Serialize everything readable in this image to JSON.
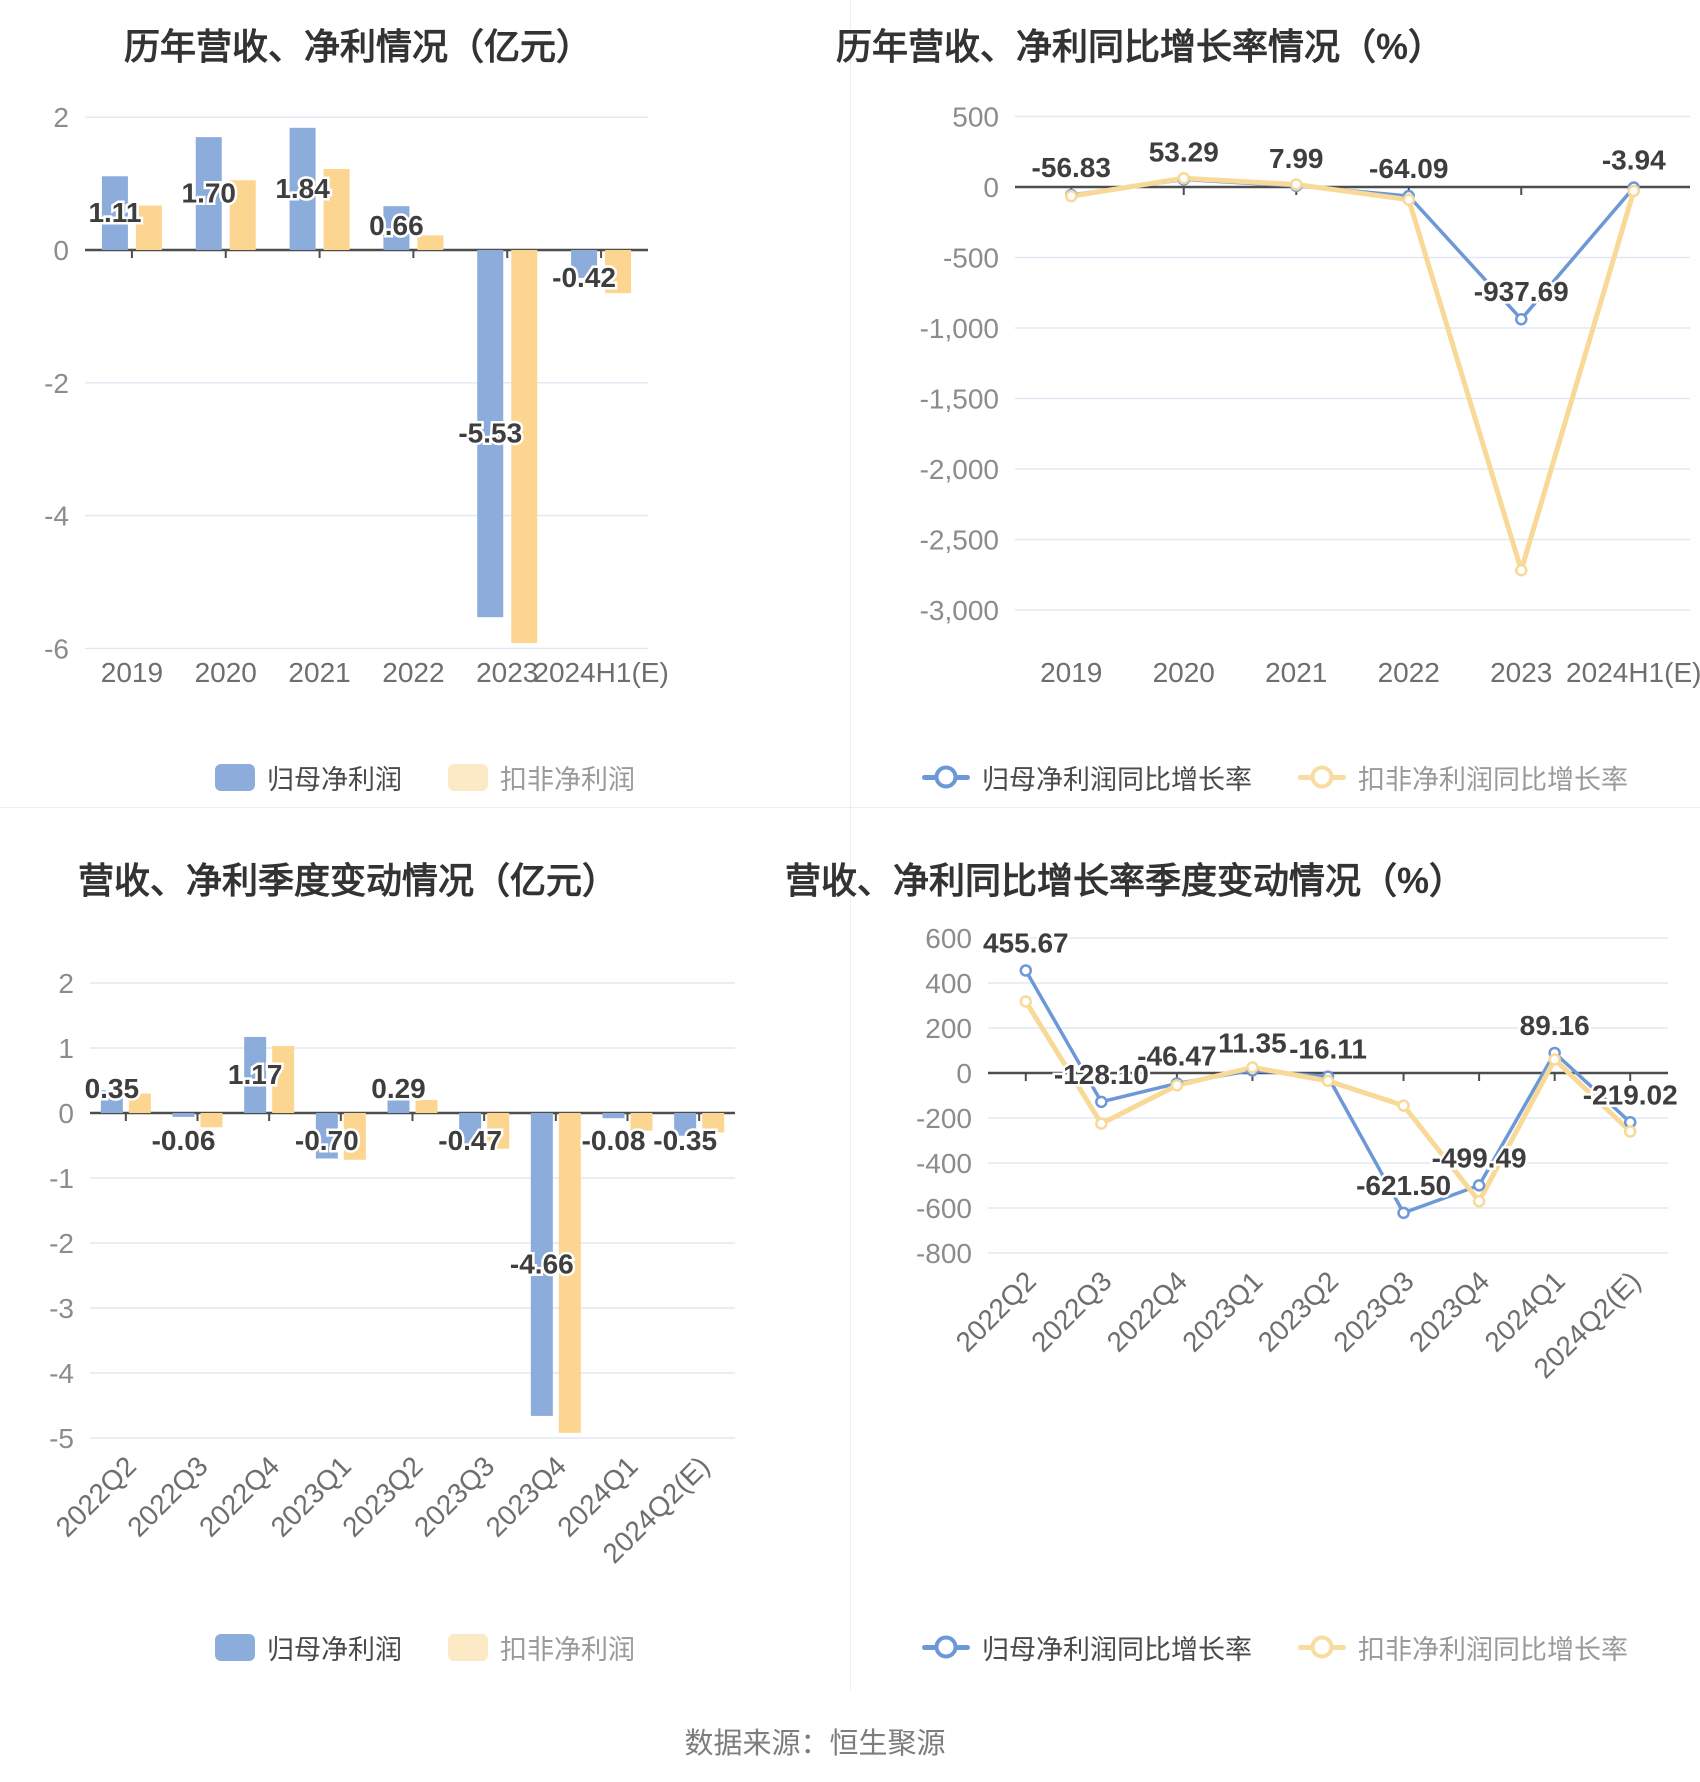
{
  "footer": {
    "source": "数据来源：恒生聚源"
  },
  "colors": {
    "bar_blue": "#8CACDC",
    "bar_yellow": "#FCD691",
    "line_blue": "#6D98D8",
    "line_yellow": "#F9D998",
    "legend_yellow_swatch": "#FCE9C5",
    "gridline": "#E2E7F4",
    "axis_line": "#4D4D4D",
    "tick_text": "#8C8C8C",
    "data_label": "#3E3E3E"
  },
  "chart_data": [
    {
      "id": "annual-profit",
      "type": "bar",
      "title": "历年营收、净利情况（亿元）",
      "categories": [
        "2019",
        "2020",
        "2021",
        "2022",
        "2023",
        "2024H1(E)"
      ],
      "series": [
        {
          "name": "归母净利润",
          "values": [
            1.11,
            1.7,
            1.84,
            0.66,
            -5.53,
            -0.42
          ],
          "labeled": true
        },
        {
          "name": "扣非净利润",
          "values": [
            0.67,
            1.05,
            1.22,
            0.22,
            -5.92,
            -0.65
          ]
        }
      ],
      "ylim": [
        2,
        -6
      ],
      "ytick_values": [
        2,
        0,
        -2,
        -4,
        -6
      ],
      "ytick_labels": [
        "2",
        "0",
        "-2",
        "-4",
        "-6"
      ],
      "grid": true,
      "legend_position": "bottom"
    },
    {
      "id": "annual-growth",
      "type": "line",
      "title": "历年营收、净利同比增长率情况（%）",
      "categories": [
        "2019",
        "2020",
        "2021",
        "2022",
        "2023",
        "2024H1(E)"
      ],
      "series": [
        {
          "name": "归母净利润同比增长率",
          "values": [
            -56.83,
            53.29,
            7.99,
            -64.09,
            -937.69,
            -3.94
          ],
          "labeled": true
        },
        {
          "name": "扣非净利润同比增长率",
          "values": [
            -65,
            62,
            18,
            -90,
            -2718,
            -28
          ]
        }
      ],
      "ylim": [
        500,
        -3000
      ],
      "ytick_values": [
        500,
        0,
        -500,
        -1000,
        -1500,
        -2000,
        -2500,
        -3000
      ],
      "ytick_labels": [
        "500",
        "0",
        "-500",
        "-1,000",
        "-1,500",
        "-2,000",
        "-2,500",
        "-3,000"
      ],
      "grid": true,
      "legend_position": "bottom"
    },
    {
      "id": "quarterly-profit",
      "type": "bar",
      "title": "营收、净利季度变动情况（亿元）",
      "categories": [
        "2022Q2",
        "2022Q3",
        "2022Q4",
        "2023Q1",
        "2023Q2",
        "2023Q3",
        "2023Q4",
        "2024Q1",
        "2024Q2(E)"
      ],
      "series": [
        {
          "name": "归母净利润",
          "values": [
            0.35,
            -0.06,
            1.17,
            -0.7,
            0.29,
            -0.47,
            -4.66,
            -0.08,
            -0.35
          ],
          "labeled": true
        },
        {
          "name": "扣非净利润",
          "values": [
            0.3,
            -0.22,
            1.03,
            -0.72,
            0.2,
            -0.55,
            -4.92,
            -0.27,
            -0.3
          ]
        }
      ],
      "ylim": [
        2,
        -5
      ],
      "ytick_values": [
        2,
        1,
        0,
        -1,
        -2,
        -3,
        -4,
        -5
      ],
      "ytick_labels": [
        "2",
        "1",
        "0",
        "-1",
        "-2",
        "-3",
        "-4",
        "-5"
      ],
      "grid": true,
      "legend_position": "bottom"
    },
    {
      "id": "quarterly-growth",
      "type": "line",
      "title": "营收、净利同比增长率季度变动情况（%）",
      "categories": [
        "2022Q2",
        "2022Q3",
        "2022Q4",
        "2023Q1",
        "2023Q2",
        "2023Q3",
        "2023Q4",
        "2024Q1",
        "2024Q2(E)"
      ],
      "series": [
        {
          "name": "归母净利润同比增长率",
          "values": [
            455.67,
            -128.1,
            -46.47,
            11.35,
            -16.11,
            -621.5,
            -499.49,
            89.16,
            -219.02
          ],
          "labeled": true
        },
        {
          "name": "扣非净利润同比增长率",
          "values": [
            318,
            -225,
            -55,
            25,
            -35,
            -145,
            -570,
            60,
            -260
          ]
        }
      ],
      "ylim": [
        600,
        -800
      ],
      "ytick_values": [
        600,
        400,
        200,
        0,
        -200,
        -400,
        -600,
        -800
      ],
      "ytick_labels": [
        "600",
        "400",
        "200",
        "0",
        "-200",
        "-400",
        "-600",
        "-800"
      ],
      "grid": true,
      "legend_position": "bottom"
    }
  ]
}
